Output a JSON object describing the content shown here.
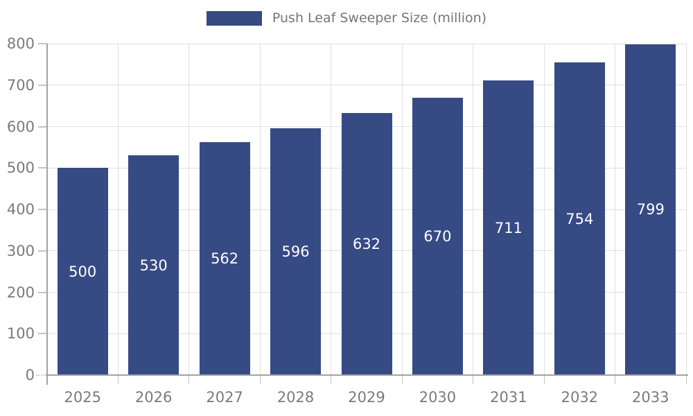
{
  "legend": {
    "label": "Push Leaf Sweeper Size (million)"
  },
  "chart_data": {
    "type": "bar",
    "title": "Push Leaf Sweeper Size (million)",
    "categories": [
      "2025",
      "2026",
      "2027",
      "2028",
      "2029",
      "2030",
      "2031",
      "2032",
      "2033"
    ],
    "values": [
      500,
      530,
      562,
      596,
      632,
      670,
      711,
      754,
      799
    ],
    "series_name": "Push Leaf Sweeper Size (million)",
    "xlabel": "",
    "ylabel": "",
    "ylim": [
      0,
      800
    ],
    "yticks": [
      0,
      100,
      200,
      300,
      400,
      500,
      600,
      700,
      800
    ],
    "grid": true,
    "legend_position": "top-center",
    "value_labels": "centered-in-bar",
    "colors": {
      "bar": "#364a84",
      "value_label": "#ffffff",
      "tick_label": "#7a7a7a",
      "legend_text": "#757575",
      "gridline": "#e0e0e0",
      "axis_line": "#a3a3a3",
      "tick_mark": "#c4c4c4",
      "background": "#ffffff"
    }
  }
}
